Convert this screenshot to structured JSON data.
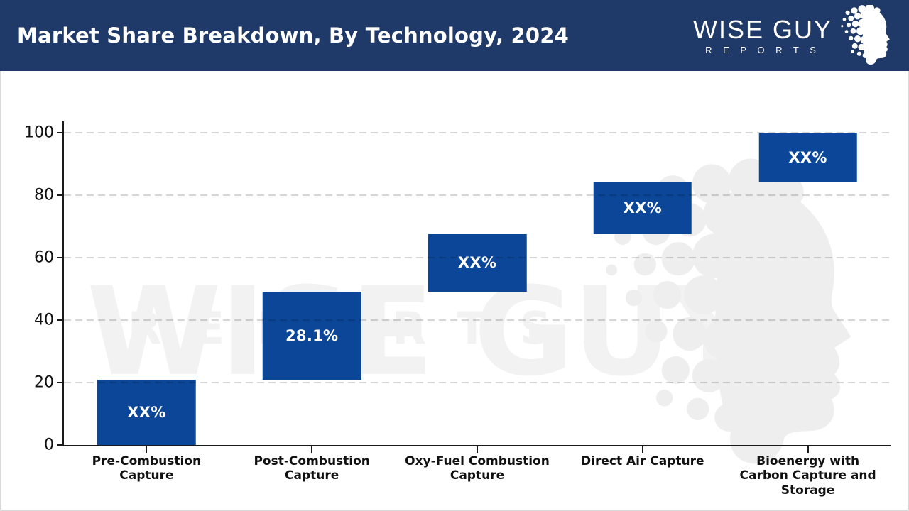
{
  "header": {
    "title": "Market Share Breakdown, By Technology, 2024",
    "logo": {
      "name": "WISE GUY",
      "sub": "R E P O R T S"
    }
  },
  "watermark": {
    "line1": "WISE GUY",
    "line2": "REPORTS"
  },
  "colors": {
    "header_bg": "#1f3a68",
    "bar": "#0b4699",
    "axis": "#1a1a1a",
    "grid": "rgba(0,0,0,0.16)",
    "watermark": "#f2f2f2",
    "card_border": "#d9d9d9",
    "title_text": "#ffffff",
    "bar_label_text": "#ffffff"
  },
  "chart_data": {
    "type": "bar",
    "subtype": "waterfall",
    "title": "Market Share Breakdown, By Technology, 2024",
    "xlabel": "",
    "ylabel": "",
    "ylim": [
      0,
      100
    ],
    "yticks": [
      0,
      20,
      40,
      60,
      80,
      100
    ],
    "grid": "horizontal-dashed",
    "legend": null,
    "categories": [
      "Pre-Combustion Capture",
      "Post-Combustion Capture",
      "Oxy-Fuel Combustion Capture",
      "Direct Air Capture",
      "Bioenergy with Carbon Capture and Storage"
    ],
    "segments": [
      {
        "category": "Pre-Combustion Capture",
        "base": 0.0,
        "value": 21.0,
        "label": "XX%"
      },
      {
        "category": "Post-Combustion Capture",
        "base": 21.0,
        "value": 28.1,
        "label": "28.1%"
      },
      {
        "category": "Oxy-Fuel Combustion Capture",
        "base": 49.1,
        "value": 18.4,
        "label": "XX%"
      },
      {
        "category": "Direct Air Capture",
        "base": 67.5,
        "value": 16.8,
        "label": "XX%"
      },
      {
        "category": "Bioenergy with Carbon Capture and Storage",
        "base": 84.3,
        "value": 15.7,
        "label": "XX%"
      }
    ]
  }
}
